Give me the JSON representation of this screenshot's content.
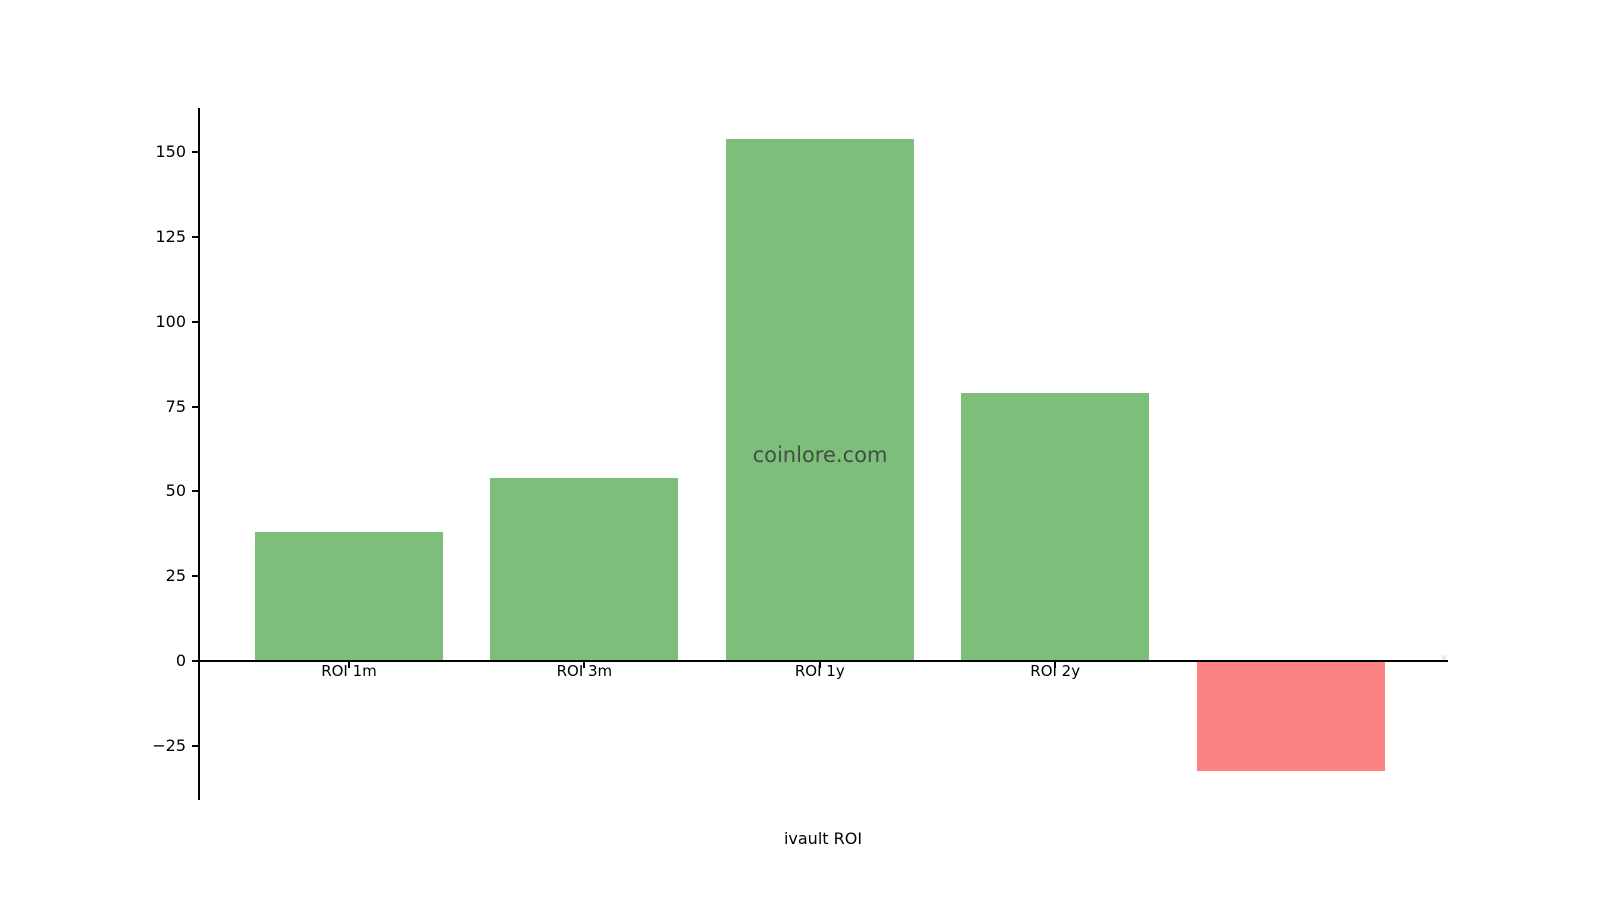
{
  "watermark": {
    "text": "coinlore.com"
  },
  "artifact": {
    "axis_end_mark": "×"
  },
  "chart_data": {
    "type": "bar",
    "title": "ivault ROI",
    "title_position": "bottom",
    "categories": [
      "ROI 1m",
      "ROI 3m",
      "ROI 1y",
      "ROI 2y",
      ""
    ],
    "values": [
      38,
      54,
      154,
      79,
      -32
    ],
    "series": [
      {
        "name": "ivault ROI",
        "values": [
          38,
          54,
          154,
          79,
          -32
        ]
      }
    ],
    "y_ticks": [
      {
        "value": 150,
        "label": "150"
      },
      {
        "value": 125,
        "label": "125"
      },
      {
        "value": 100,
        "label": "100"
      },
      {
        "value": 75,
        "label": "75"
      },
      {
        "value": 50,
        "label": "50"
      },
      {
        "value": 25,
        "label": "25"
      },
      {
        "value": 0,
        "label": "0"
      },
      {
        "value": -25,
        "label": "−25"
      }
    ],
    "xlabel": "",
    "ylabel": "",
    "ylim": [
      -41,
      163
    ],
    "grid": false,
    "legend": false,
    "colors": {
      "positive_bar": "#7dbe7a",
      "negative_bar": "#fc8383",
      "axis": "#000000"
    },
    "note": "fifth bar x label not visible (covered by negative bar)"
  }
}
